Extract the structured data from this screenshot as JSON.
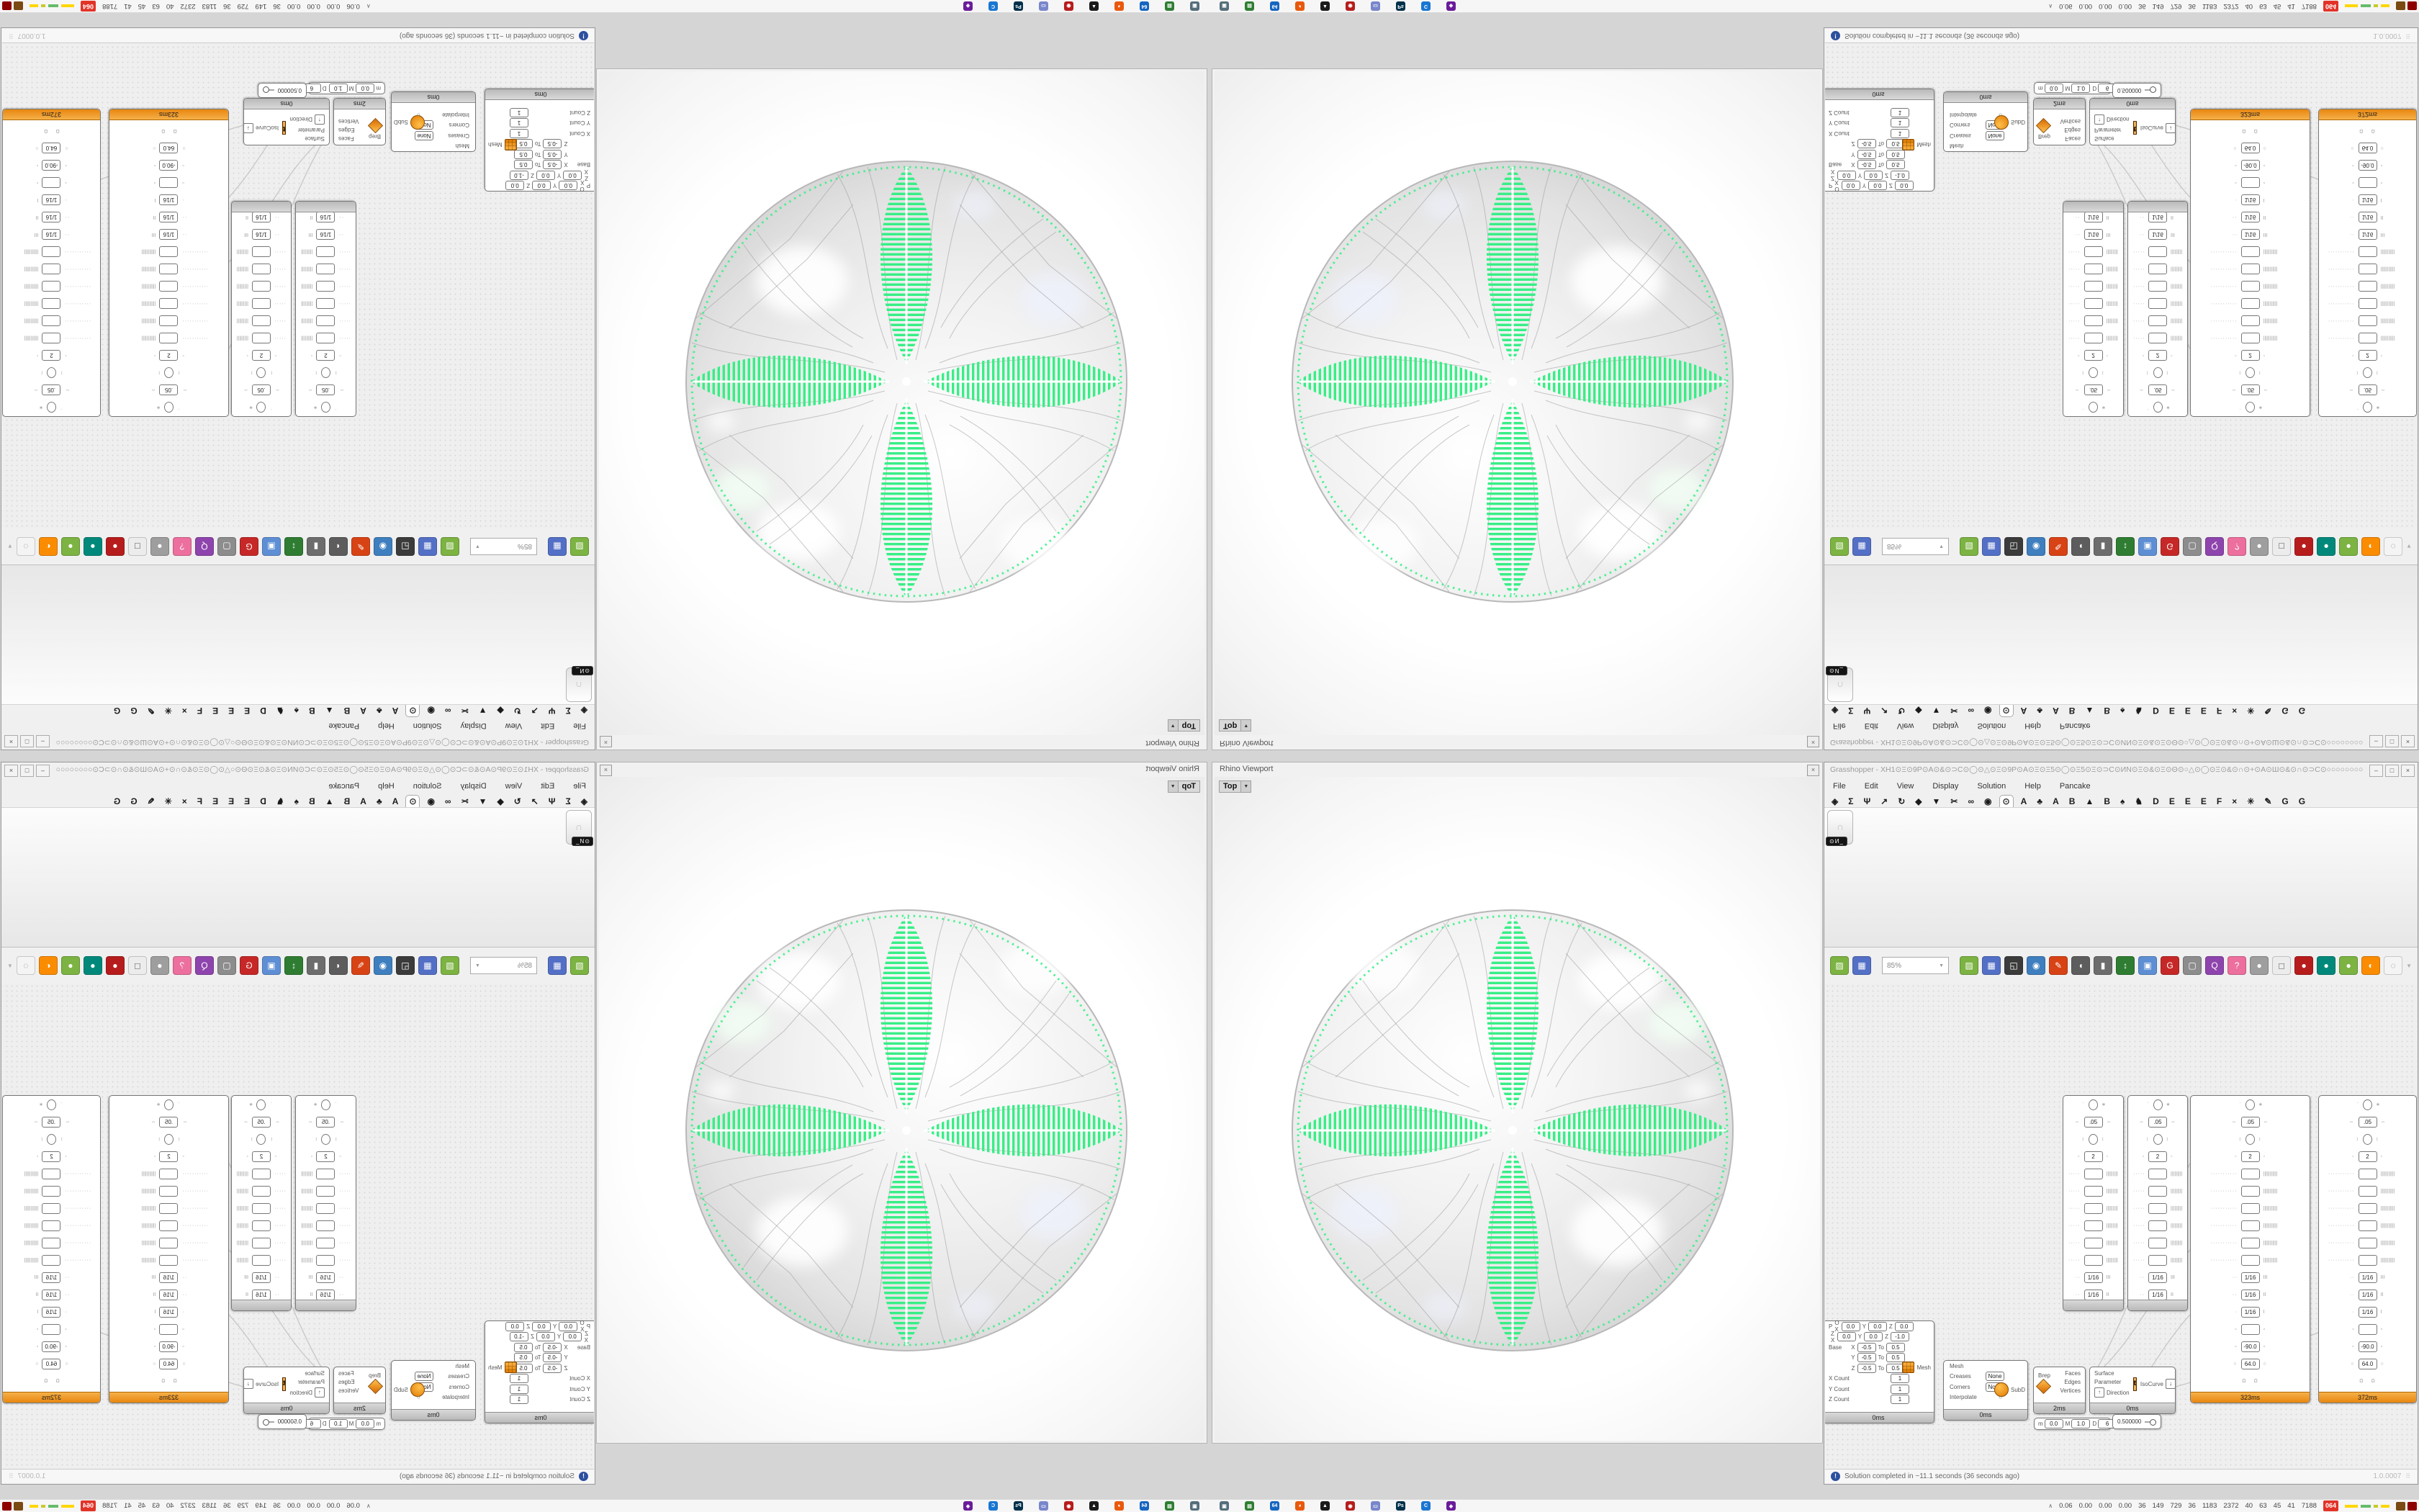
{
  "viewport_window": {
    "title": "Rhino Viewport",
    "close_glyph": "×",
    "view_tab": {
      "label": "Top",
      "dropdown_glyph": "▼"
    }
  },
  "grasshopper": {
    "title": "Grasshopper - XH1⊙Ξ⊙9P⊙A⊙&⊙⊃C⊙◯⊙△⊙Ξ⊙9P⊙A⊙Ξ⊙Ξ5⊙◯⊙Ξ5⊙Ξ⊙⊃C⊙ИN⊙Ξ⊙&⊙Ξ⊙Θ⊙○△⊙◯⊙Ξ⊙&⊙∩⊙+⊙A⊙Ш⊙&⊙∩⊙⊃C⊙○○○○○○○○○○○⊃_",
    "window_buttons": [
      {
        "g": "–"
      },
      {
        "g": "□"
      },
      {
        "g": "×"
      }
    ],
    "menu_items": [
      {
        "label": "File"
      },
      {
        "label": "Edit"
      },
      {
        "label": "View"
      },
      {
        "label": "Display"
      },
      {
        "label": "Solution"
      },
      {
        "label": "Help"
      },
      {
        "label": "Pancake"
      }
    ],
    "category_tabs": [
      {
        "g": "◈"
      },
      {
        "g": "Σ"
      },
      {
        "g": "Ψ"
      },
      {
        "g": "↗"
      },
      {
        "g": "↻"
      },
      {
        "g": "◆"
      },
      {
        "g": "▼"
      },
      {
        "g": "✂"
      },
      {
        "g": "∞"
      },
      {
        "g": "◉"
      },
      {
        "g": "⊙",
        "sel": true
      },
      {
        "g": "A"
      },
      {
        "g": "♣"
      },
      {
        "g": "A"
      },
      {
        "g": "B"
      },
      {
        "g": "▲"
      },
      {
        "g": "B"
      },
      {
        "g": "♠"
      },
      {
        "g": "♞"
      },
      {
        "g": "D"
      },
      {
        "g": "E"
      },
      {
        "g": "E"
      },
      {
        "g": "E"
      },
      {
        "g": "F"
      },
      {
        "g": "×"
      },
      {
        "g": "✳"
      },
      {
        "g": "✎"
      },
      {
        "g": "G"
      },
      {
        "g": "G"
      }
    ],
    "drawer": {
      "icon_glyph": "∩",
      "badge": "⊙И_"
    },
    "toolbar": {
      "zoom_value": "85%",
      "zoom_dropdown_glyph": "▼",
      "end_dropdown_glyph": "▼",
      "icons": [
        {
          "name": "open-file",
          "c": "#7cb342",
          "g": "▨"
        },
        {
          "name": "save-file",
          "c": "#5470c6",
          "g": "▦"
        },
        {
          "name": "zoom-extents",
          "c": "#3b3b3b",
          "g": "◱"
        },
        {
          "name": "preview-settings",
          "c": "#3f7fbf",
          "g": "◉"
        },
        {
          "name": "sketch-tool",
          "c": "#d84315",
          "g": "✎"
        },
        {
          "name": "exoskeleton",
          "c": "#5d5d5d",
          "g": "◖"
        },
        {
          "name": "speaker",
          "c": "#6d6d6d",
          "g": "▮"
        },
        {
          "name": "remap",
          "c": "#2f7d32",
          "g": "↕"
        },
        {
          "name": "window-blue",
          "c": "#5e8fd4",
          "g": "▣"
        },
        {
          "name": "gha-loader",
          "c": "#c62828",
          "g": "G"
        },
        {
          "name": "window-gray",
          "c": "#8d8d8d",
          "g": "▢"
        },
        {
          "name": "find-component",
          "c": "#8e44ad",
          "g": "Q"
        },
        {
          "name": "surprise-box",
          "c": "#ec6f9e",
          "g": "?"
        },
        {
          "name": "preview-off",
          "c": "#9e9e9e",
          "g": "●"
        },
        {
          "name": "preview-wire",
          "c": "#ececec",
          "g": "◻",
          "f": "#777"
        },
        {
          "name": "preview-shaded",
          "c": "#b71c1c",
          "g": "●"
        },
        {
          "name": "mode-teal",
          "c": "#00897b",
          "g": "●"
        },
        {
          "name": "mode-green",
          "c": "#7cb342",
          "g": "●"
        },
        {
          "name": "mode-orange",
          "c": "#fb8c00",
          "g": "◐"
        },
        {
          "name": "selection-lasso",
          "c": "#f4f4f4",
          "g": "◌",
          "f": "#888"
        }
      ]
    },
    "canvas": {
      "mesh_box": {
        "rows": [
          {
            "L": "P",
            "t1": "O X",
            "v1": "0.0",
            "t2": "Y",
            "v2": "0.0",
            "t3": "Z",
            "v3": "0.0"
          },
          {
            "L": "",
            "t1": "Z X",
            "v1": "0.0",
            "t2": "Y",
            "v2": "0.0",
            "t3": "Z",
            "v3": "-1.0"
          },
          {
            "L": "Base",
            "t1": "X",
            "v1": "-0.5",
            "t2": "To",
            "v2": "0.5"
          },
          {
            "L": "",
            "t1": "Y",
            "v1": "-0.5",
            "t2": "To",
            "v2": "0.5"
          },
          {
            "L": "",
            "t1": "Z",
            "v1": "-0.5",
            "t2": "To",
            "v2": "0.5"
          },
          {
            "L": "X Count",
            "v3": "1"
          },
          {
            "L": "Y Count",
            "v3": "1"
          },
          {
            "L": "Z Count",
            "v3": "1"
          }
        ],
        "out_label": "Mesh",
        "time": "0ms"
      },
      "subd": {
        "rows": [
          {
            "L": "Mesh"
          },
          {
            "L": "Creases",
            "v3": "None"
          },
          {
            "L": "Corners",
            "v3": "None"
          },
          {
            "L": "Interpolate",
            "t3": "○"
          }
        ],
        "out_label": "SubD",
        "time": "0ms"
      },
      "brep": {
        "in_label": "Brep",
        "outs": [
          {
            "label": "Faces"
          },
          {
            "label": "Edges"
          },
          {
            "label": "Vertices"
          }
        ],
        "time": "2ms"
      },
      "isocurve": {
        "ins": [
          {
            "pre": "",
            "label": "Surface"
          },
          {
            "pre": "",
            "label": "Parameter"
          },
          {
            "pre": "↑",
            "label": "Direction"
          }
        ],
        "icon_letter": "t",
        "out_label": "IsoCurve",
        "down_glyph": "↓",
        "time": "0ms"
      },
      "domain": {
        "fields": [
          {
            "t": "m",
            "v": "0.0"
          },
          {
            "t": "M",
            "v": "1.0"
          },
          {
            "t": "D",
            "v": "6"
          }
        ]
      },
      "slider": {
        "value": "0.500000"
      },
      "tall_rows": [
        {
          "a": "ˆ",
          "b": " ",
          "circ": true,
          "c": "∗"
        },
        {
          "a": "⇔",
          "b": ".05",
          "c": "⇔"
        },
        {
          "a": "↕",
          "b": " ",
          "circ": true,
          "c": "↕"
        },
        {
          "a": "◦",
          "b": "2",
          "c": "◦"
        },
        {
          "a": "···········",
          "b": " ",
          "c": "|||||||||||"
        },
        {
          "a": "···········",
          "b": " ",
          "c": "|||||||||||"
        },
        {
          "a": "···········",
          "b": " ",
          "c": "|||||||||||"
        },
        {
          "a": "···········",
          "b": " ",
          "c": "|||||||||||"
        },
        {
          "a": "···········",
          "b": " ",
          "c": "|||||||||||"
        },
        {
          "a": "···········",
          "b": " ",
          "c": "|||||||||||"
        },
        {
          "a": "··",
          "b": "1/16",
          "c": "III"
        },
        {
          "a": "··",
          "b": "1/16",
          "c": "II"
        },
        {
          "a": "·",
          "b": "1/16",
          "c": "I"
        },
        {
          "a": "▫",
          "b": " ",
          "c": "▫"
        },
        {
          "a": "▫",
          "b": "-90.0",
          "c": "▫"
        },
        {
          "a": "○",
          "b": "64.0",
          "c": "○"
        },
        {
          "a": "Ω",
          "b": "",
          "c": "Ω"
        }
      ],
      "tall_times": {
        "n3": "323ms",
        "n4": "372ms"
      }
    },
    "status_bar": {
      "message": "Solution completed in ~11.1 seconds (36 seconds ago)",
      "version": "1.0.0007",
      "grip_glyph": "⠿"
    }
  },
  "taskbar": {
    "app_icons": [
      {
        "name": "screen-tool",
        "c": "#546e7a",
        "g": "▣"
      },
      {
        "name": "drive-green",
        "c": "#2e7d32",
        "g": "▤"
      },
      {
        "name": "disk-64",
        "c": "#1565c0",
        "g": "64"
      },
      {
        "name": "firefox",
        "c": "#e8590c",
        "g": "◕"
      },
      {
        "name": "gimp",
        "c": "#1a1a1a",
        "g": "▲"
      },
      {
        "name": "red-app",
        "c": "#b71c1c",
        "g": "◉"
      },
      {
        "name": "window-app",
        "c": "#7986cb",
        "g": "▭"
      },
      {
        "name": "photoshop",
        "c": "#00304b",
        "g": "Ps"
      },
      {
        "name": "code-app",
        "c": "#1976d2",
        "g": "C"
      },
      {
        "name": "owl-app",
        "c": "#6a1b9a",
        "g": "◈"
      }
    ],
    "tray": {
      "expand_glyph": "∧",
      "stats": [
        "0.06",
        "0.00",
        "0.00",
        "0.00",
        "36",
        "149",
        "729",
        "36",
        "1183",
        "2372",
        "40",
        "63",
        "45",
        "41",
        "7188"
      ],
      "badge": "064",
      "minis": [
        {
          "c": "#ffd600",
          "w": 18
        },
        {
          "c": "#66bb6a",
          "w": 14
        },
        {
          "c": "#c9c92a",
          "w": 6
        },
        {
          "c": "#ffd600",
          "w": 12
        }
      ],
      "squares": [
        {
          "name": "tray-brown",
          "c": "#7a4a12"
        },
        {
          "name": "tray-darkred",
          "c": "#8e0000"
        }
      ]
    }
  }
}
